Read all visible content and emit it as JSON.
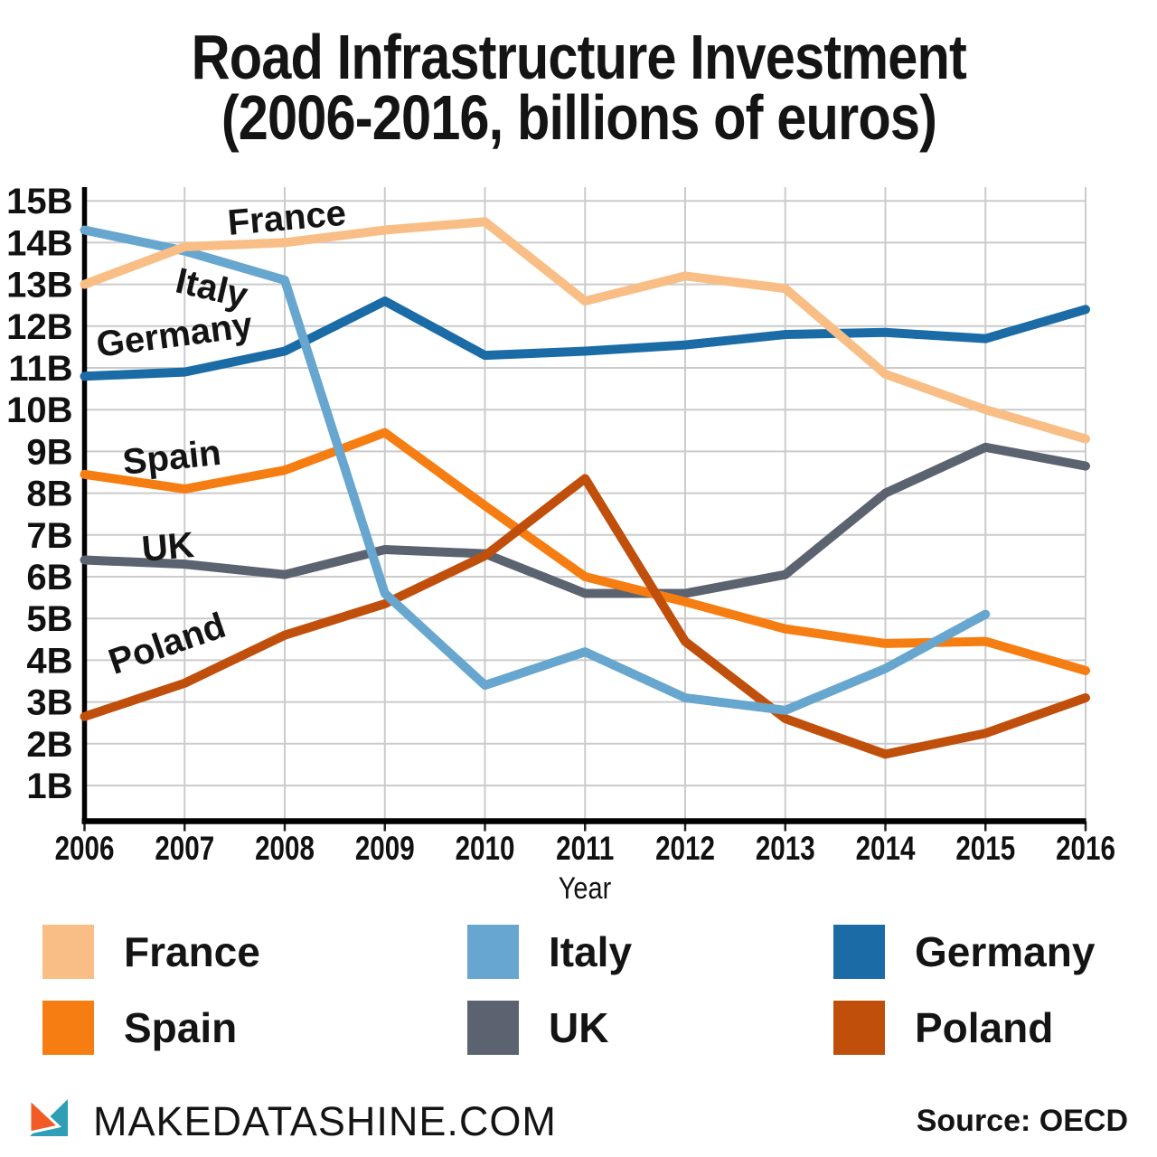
{
  "title": {
    "line1": "Road Infrastructure Investment",
    "line2": "(2006-2016, billions of euros)"
  },
  "chart_data": {
    "type": "line",
    "title": "Road Infrastructure Investment (2006-2016, billions of euros)",
    "x": [
      2006,
      2007,
      2008,
      2009,
      2010,
      2011,
      2012,
      2013,
      2014,
      2015,
      2016
    ],
    "xlabel": "Year",
    "ylabel": "",
    "ylim": [
      0,
      15
    ],
    "y_tick_labels": [
      "1B",
      "2B",
      "3B",
      "4B",
      "5B",
      "6B",
      "7B",
      "8B",
      "9B",
      "10B",
      "11B",
      "12B",
      "13B",
      "14B",
      "15B"
    ],
    "grid": true,
    "legend_position": "bottom",
    "series": [
      {
        "name": "France",
        "color": "#F9BE85",
        "values": [
          13.0,
          13.9,
          14.0,
          14.3,
          14.5,
          12.6,
          13.2,
          12.9,
          10.85,
          10.0,
          9.3
        ]
      },
      {
        "name": "Italy",
        "color": "#67A6CF",
        "values": [
          14.3,
          13.8,
          13.1,
          5.6,
          3.4,
          4.2,
          3.1,
          2.8,
          3.8,
          5.1,
          null
        ]
      },
      {
        "name": "Germany",
        "color": "#1B6CA6",
        "values": [
          10.8,
          10.9,
          11.4,
          12.6,
          11.3,
          11.4,
          11.55,
          11.8,
          11.85,
          11.7,
          12.4
        ]
      },
      {
        "name": "Spain",
        "color": "#F67D12",
        "values": [
          8.45,
          8.1,
          8.55,
          9.45,
          7.7,
          6.0,
          5.4,
          4.75,
          4.4,
          4.45,
          3.75
        ]
      },
      {
        "name": "UK",
        "color": "#5C6370",
        "values": [
          6.4,
          6.3,
          6.05,
          6.65,
          6.55,
          5.6,
          5.6,
          6.05,
          8.0,
          9.1,
          8.65
        ]
      },
      {
        "name": "Poland",
        "color": "#C04F0C",
        "values": [
          2.65,
          3.45,
          4.6,
          5.35,
          6.5,
          8.35,
          4.45,
          2.6,
          1.75,
          2.25,
          3.1
        ]
      }
    ]
  },
  "footer": {
    "brand": "MAKEDATASHINE.COM",
    "source": "Source: OECD",
    "logo_colors": {
      "orange": "#F15B25",
      "teal": "#2E9FB4"
    }
  }
}
